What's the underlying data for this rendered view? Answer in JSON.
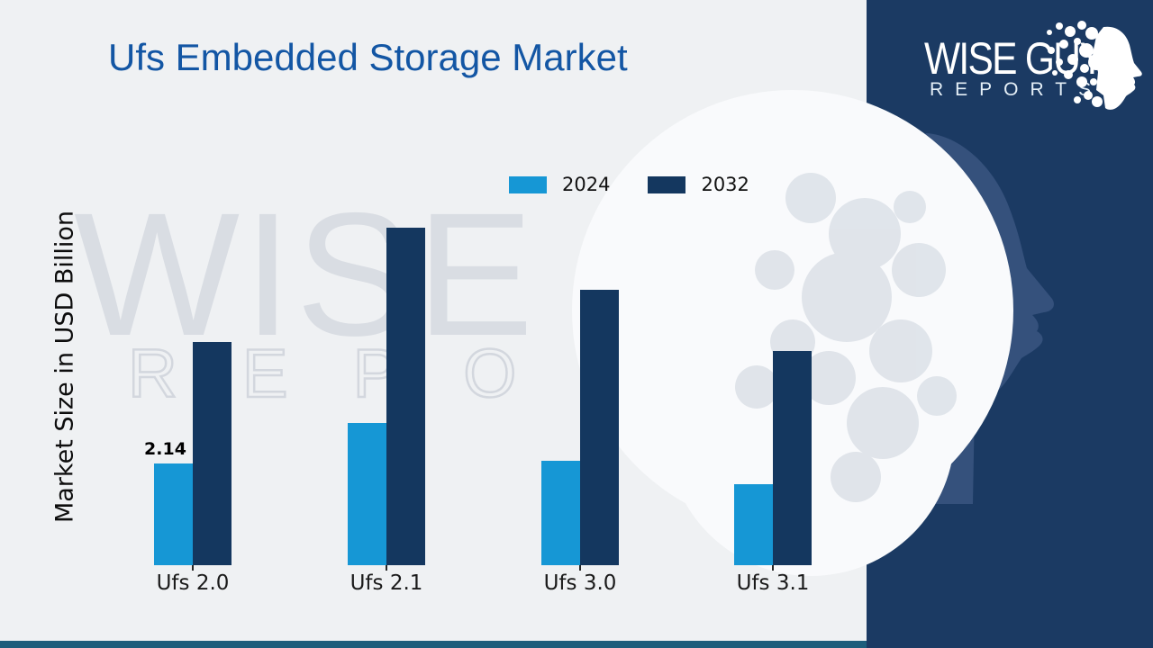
{
  "page": {
    "background": "#eff1f3",
    "bottom_strip_color": "#1d5e7c"
  },
  "header": {
    "title": "Ufs Embedded Storage Market",
    "title_color": "#1356a4"
  },
  "watermark": {
    "line1": "WISE GUY",
    "line2": "REPORTS",
    "color": "#d9dde3"
  },
  "brand_panel": {
    "background": "#1b3a63",
    "face_silhouette_color": "#35517c",
    "logo_line1": "WISE GUY",
    "logo_line2": "REPORTS",
    "logo_colors": {
      "text": "#ffffff",
      "subtext": "#e4eff7",
      "dots": "#ffffff"
    }
  },
  "chart_data": {
    "type": "bar",
    "title": "Ufs Embedded Storage Market",
    "xlabel": "",
    "ylabel": "Market Size in USD Billion",
    "categories": [
      "Ufs 2.0",
      "Ufs 2.1",
      "Ufs 3.0",
      "Ufs 3.1"
    ],
    "series": [
      {
        "name": "2024",
        "color": "#1697d5",
        "values": [
          2.14,
          3.0,
          2.2,
          1.7
        ]
      },
      {
        "name": "2032",
        "color": "#14375f",
        "values": [
          4.7,
          7.1,
          5.8,
          4.5
        ]
      }
    ],
    "bar_value_labels": [
      {
        "series": "2024",
        "category": "Ufs 2.0",
        "text": "2.14"
      }
    ],
    "ylim": [
      0,
      7.5
    ],
    "grid": false,
    "legend_position": "top-center"
  }
}
